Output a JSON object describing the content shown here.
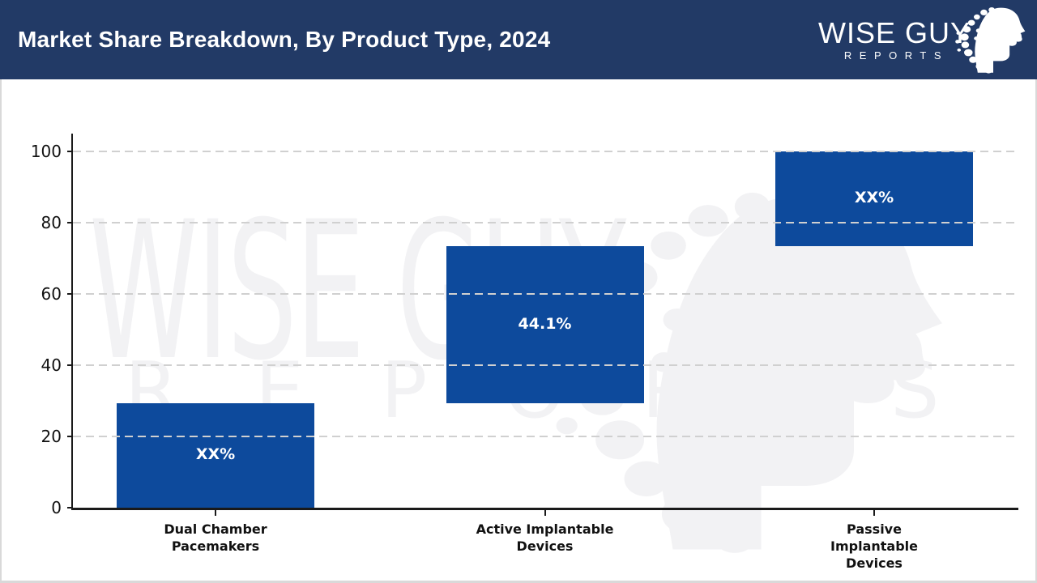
{
  "header": {
    "title": "Market Share Breakdown, By Product Type, 2024",
    "logo": {
      "name": "WISE GUY",
      "sub": "REPORTS"
    }
  },
  "watermark": {
    "big": "WISE GUY",
    "sub": "REPORTS"
  },
  "chart_data": {
    "type": "bar",
    "variant": "floating-waterfall",
    "title": "Market Share Breakdown, By Product Type, 2024",
    "categories": [
      [
        "Dual Chamber",
        "Pacemakers"
      ],
      [
        "Active Implantable",
        "Devices"
      ],
      [
        "Passive",
        "Implantable",
        "Devices"
      ]
    ],
    "segments": [
      {
        "category": "Dual Chamber Pacemakers",
        "start": 0,
        "end": 29.4,
        "label": "XX%"
      },
      {
        "category": "Active Implantable Devices",
        "start": 29.4,
        "end": 73.5,
        "label": "44.1%"
      },
      {
        "category": "Passive Implantable Devices",
        "start": 73.5,
        "end": 100,
        "label": "XX%"
      }
    ],
    "yticks": [
      0,
      20,
      40,
      60,
      80,
      100
    ],
    "ylim": [
      0,
      105
    ],
    "grid": "dashed-horizontal",
    "legend": "none",
    "bar_color": "#0d4a9c",
    "bar_label_color": "#ffffff"
  },
  "colors": {
    "header_bg": "#223a66",
    "bar": "#0d4a9c",
    "grid": "#d0d0d0",
    "axis": "#1a1a1a",
    "watermark": "#f2f2f4",
    "border": "#d9d9d9"
  }
}
